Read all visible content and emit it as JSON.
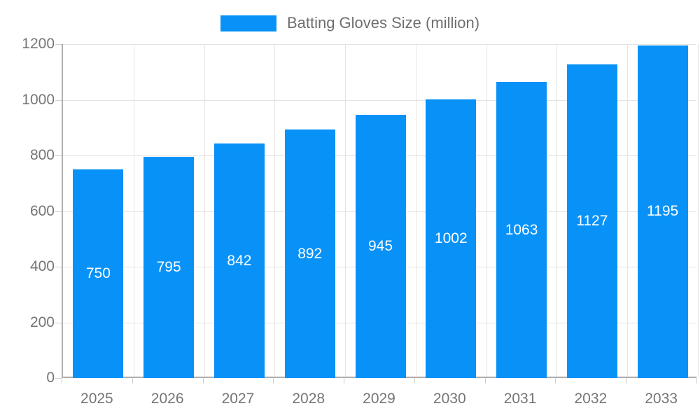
{
  "chart_data": {
    "type": "bar",
    "title": "Batting Gloves Size (million)",
    "legend": {
      "position": "top",
      "label": "Batting Gloves Size (million)",
      "swatch_color": "#0892f8"
    },
    "categories": [
      "2025",
      "2026",
      "2027",
      "2028",
      "2029",
      "2030",
      "2031",
      "2032",
      "2033"
    ],
    "series": [
      {
        "name": "Batting Gloves Size (million)",
        "values": [
          750,
          795,
          842,
          892,
          945,
          1002,
          1063,
          1127,
          1195
        ]
      }
    ],
    "xlabel": "",
    "ylabel": "",
    "ylim": [
      0,
      1200
    ],
    "yticks": [
      0,
      200,
      400,
      600,
      800,
      1000,
      1200
    ],
    "grid": true,
    "bar_color": "#0892f8",
    "value_labels": {
      "show": true,
      "color": "#ffffff",
      "position": "middle-of-bar"
    }
  },
  "colors": {
    "background": "#ffffff",
    "grid": "#e4e4e4",
    "axis": "#b0b0b0",
    "tick": "#cfcfcf",
    "axis_text": "#757575",
    "legend_text": "#6e6e6e"
  }
}
